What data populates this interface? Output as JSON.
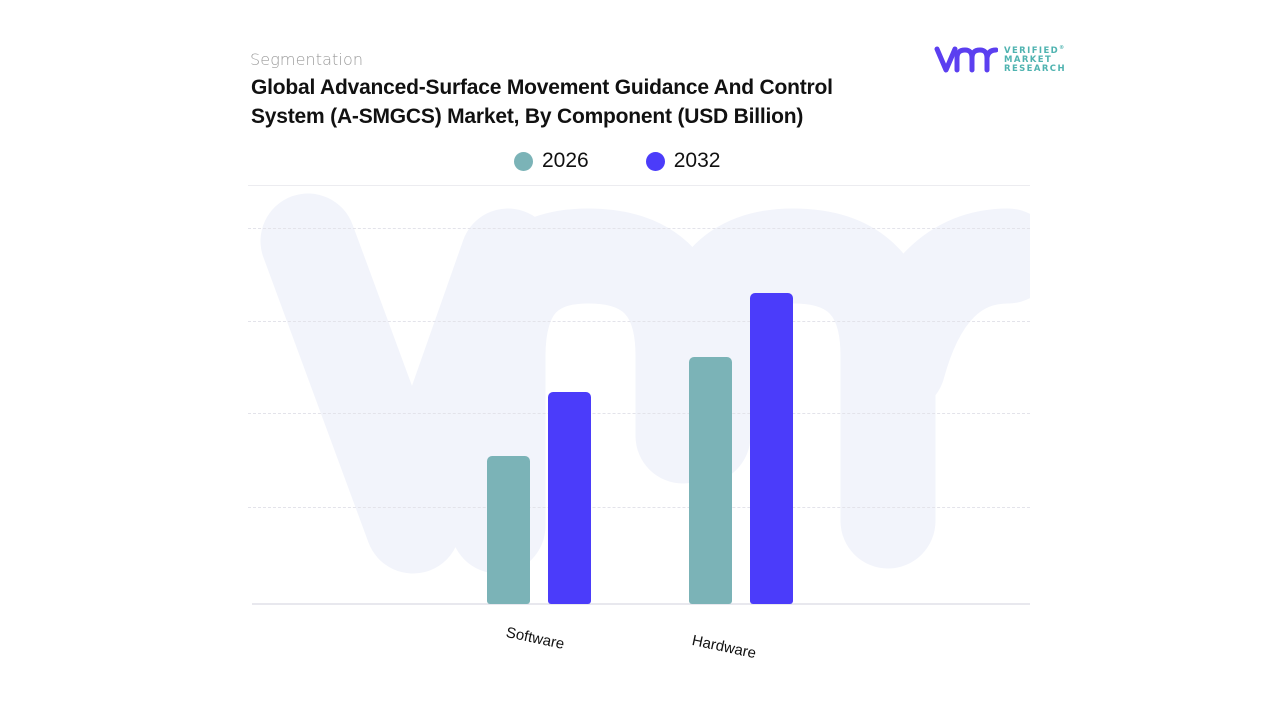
{
  "header": {
    "eyebrow": "Segmentation",
    "title": "Global Advanced-Surface Movement Guidance And Control System (A-SMGCS) Market, By Component (USD Billion)"
  },
  "logo": {
    "icon": "vmr-logo-icon",
    "line1": "VERIFIED",
    "line2": "MARKET",
    "line3": "RESEARCH",
    "registered": "®",
    "color_icon": "#5b3ff0",
    "color_text": "#4fb3b0"
  },
  "legend": [
    {
      "label": "2026",
      "color": "#7bb3b7"
    },
    {
      "label": "2032",
      "color": "#4b3cfa"
    }
  ],
  "chart_data": {
    "type": "bar",
    "title": "Global Advanced-Surface Movement Guidance And Control System (A-SMGCS) Market, By Component (USD Billion)",
    "subtitle": "Segmentation",
    "categories": [
      "Software",
      "Hardware"
    ],
    "series": [
      {
        "name": "2026",
        "color": "#7bb3b7",
        "values": [
          1.58,
          2.63
        ]
      },
      {
        "name": "2032",
        "color": "#4b3cfa",
        "values": [
          2.26,
          3.32
        ]
      }
    ],
    "xlabel": "",
    "ylabel": "",
    "ylim": [
      0,
      4
    ],
    "y_tick_labels_visible": false,
    "gridlines": [
      1,
      2,
      3,
      4
    ],
    "grid": true,
    "legend_position": "top",
    "note": "No y-axis scale shown; values expressed in gridline units (estimated from bar heights)."
  }
}
